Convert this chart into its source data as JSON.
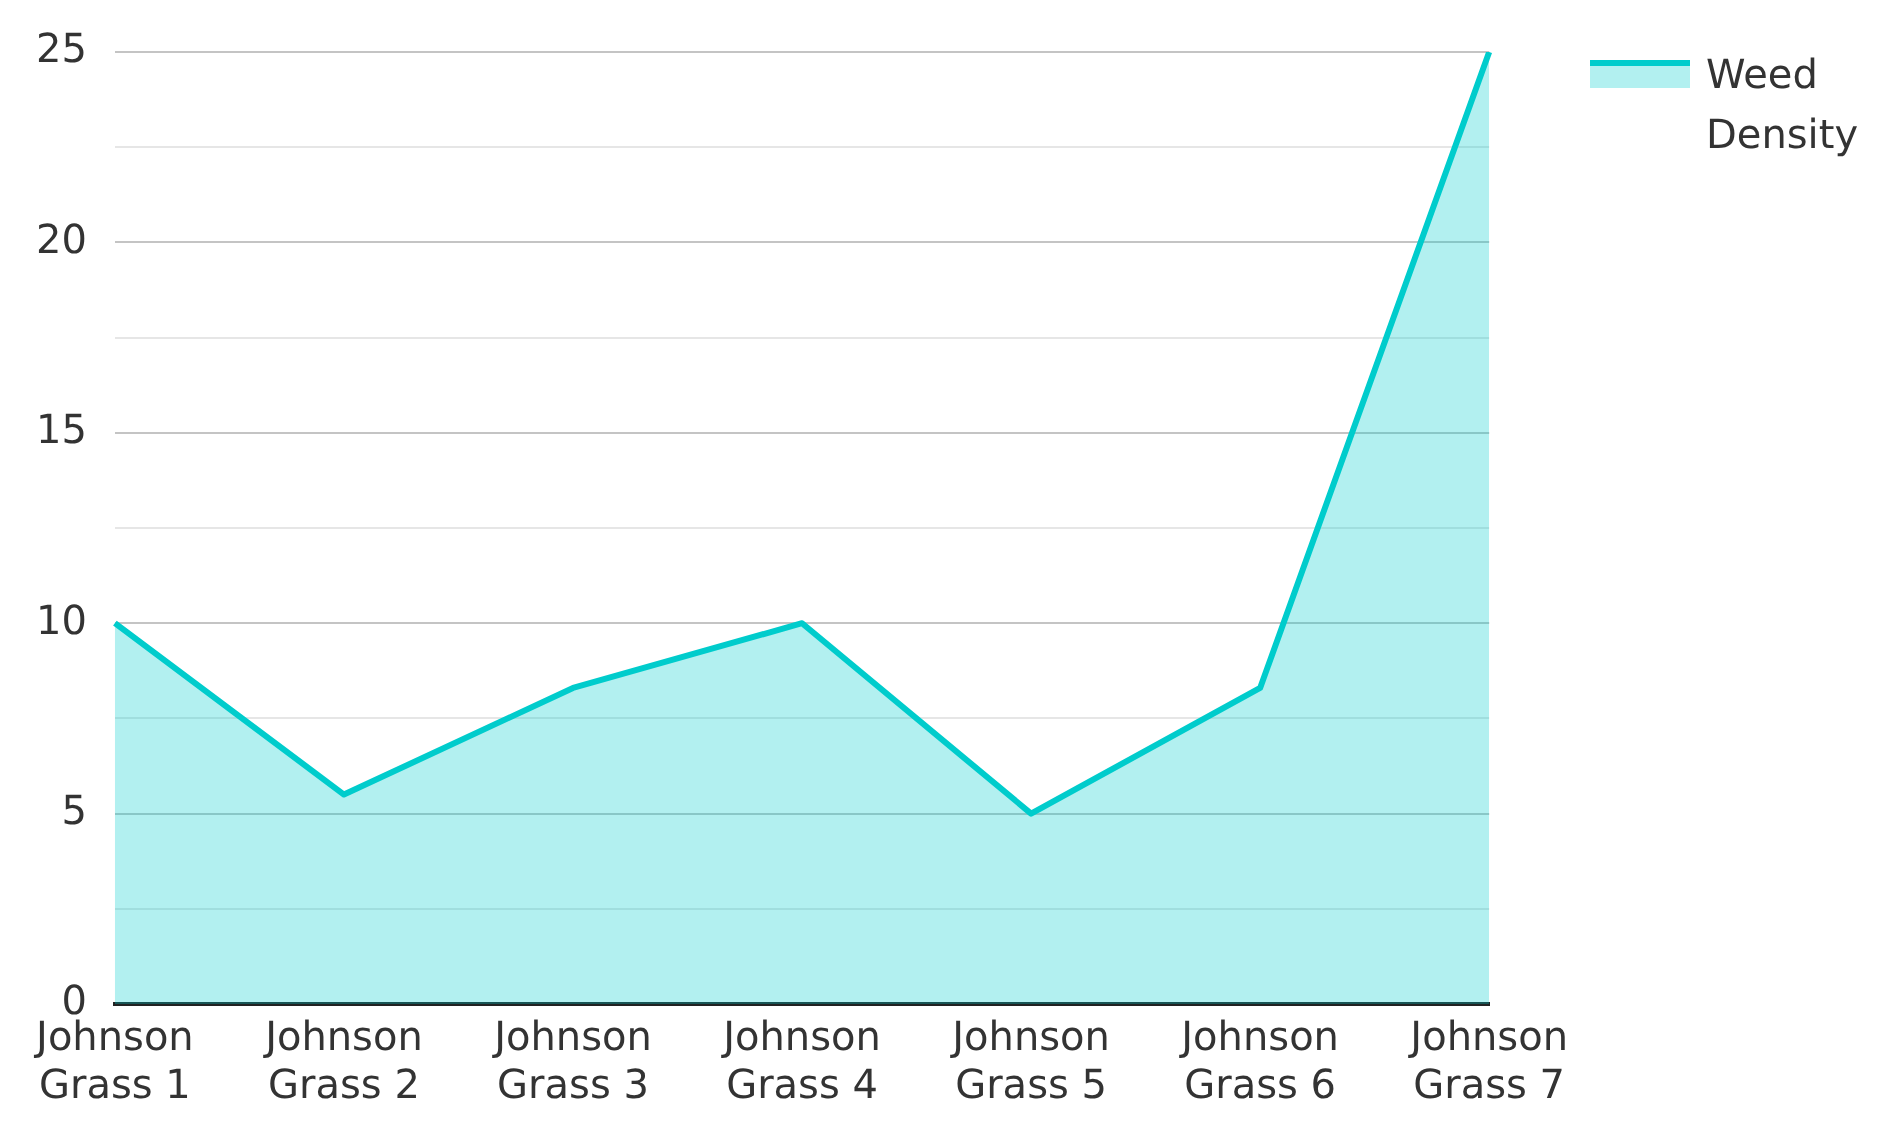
{
  "chart_data": {
    "type": "area",
    "categories": [
      "Johnson Grass 1",
      "Johnson Grass 2",
      "Johnson Grass 3",
      "Johnson Grass 4",
      "Johnson Grass 5",
      "Johnson Grass 6",
      "Johnson Grass 7"
    ],
    "series": [
      {
        "name": "Weed Density",
        "color": "#00cccc",
        "values": [
          10,
          5.5,
          8.3,
          10,
          5,
          8.3,
          25
        ]
      }
    ],
    "ylim": [
      0,
      25
    ],
    "yticks": [
      0,
      {
        "value": 2.5,
        "label": null
      },
      5,
      {
        "value": 7.5,
        "label": null
      },
      10,
      {
        "value": 12.5,
        "label": null
      },
      15,
      {
        "value": 17.5,
        "label": null
      },
      20,
      {
        "value": 22.5,
        "label": null
      },
      25
    ],
    "grid": "y",
    "legend": "top right",
    "marker": "none",
    "line_style": "solid"
  }
}
